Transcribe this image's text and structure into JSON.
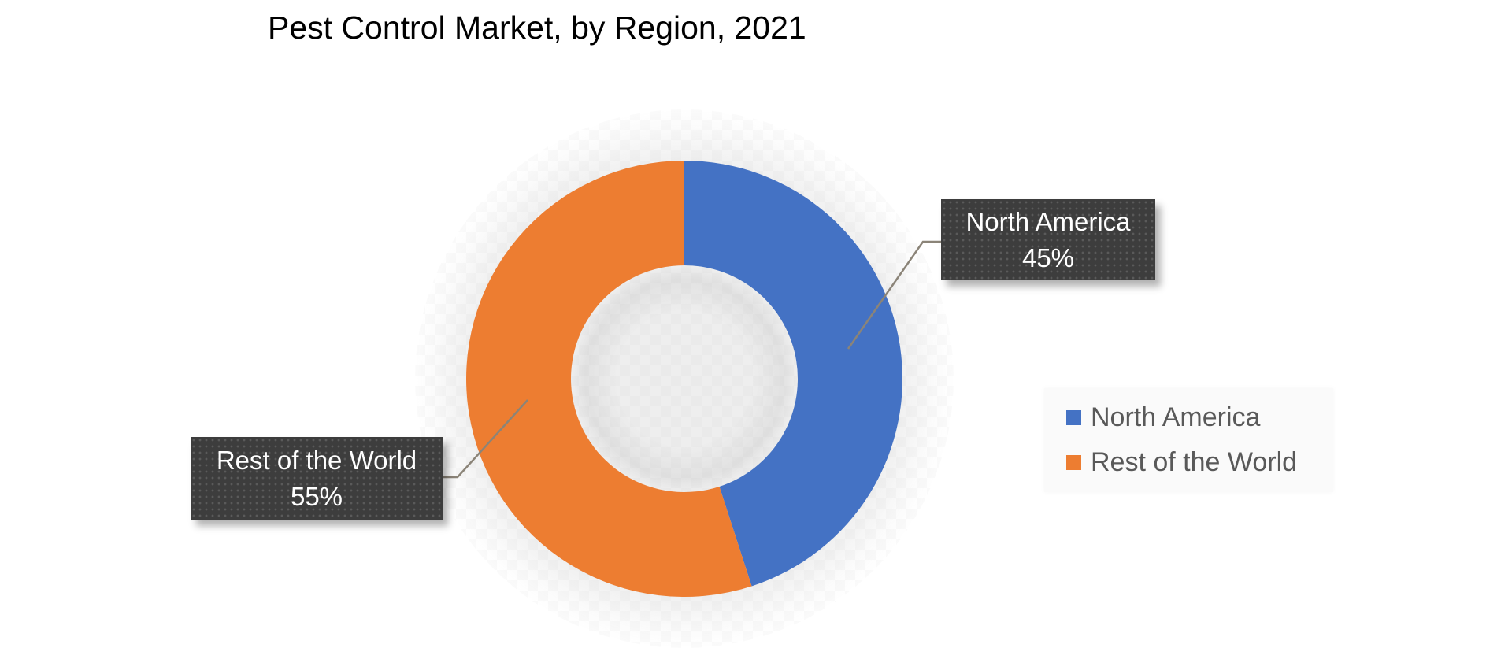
{
  "title": "Pest Control Market, by Region, 2021",
  "chart_data": {
    "type": "pie",
    "subtype": "donut",
    "title": "Pest Control Market, by Region, 2021",
    "categories": [
      "North America",
      "Rest of the World"
    ],
    "values": [
      45,
      55
    ],
    "unit": "percent",
    "colors": [
      "#4472C4",
      "#ED7D31"
    ],
    "start_angle_deg": 0,
    "direction": "clockwise",
    "donut_hole_ratio": 0.52,
    "legend_position": "right",
    "data_labels": [
      "North America 45%",
      "Rest of the World 55%"
    ]
  },
  "callouts": [
    {
      "label": "North America",
      "value_text": "45%"
    },
    {
      "label": "Rest of the World",
      "value_text": "55%"
    }
  ],
  "legend": {
    "items": [
      {
        "label": "North America",
        "color": "#4472C4"
      },
      {
        "label": "Rest of the World",
        "color": "#ED7D31"
      }
    ]
  },
  "styles": {
    "background": "#FFFFFF",
    "title_color": "#000000",
    "label_box_bg": "#3D3D3D",
    "label_text_color": "#FFFFFF",
    "legend_text_color": "#595959",
    "leader_line_color": "#8B8478"
  }
}
